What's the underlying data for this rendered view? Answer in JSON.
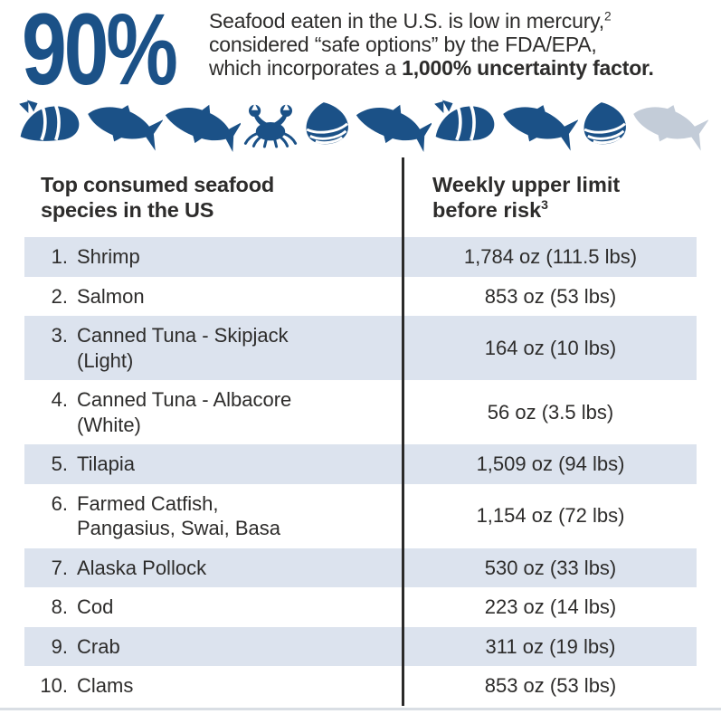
{
  "colors": {
    "navy": "#1b5187",
    "row_shade": "#dce3ee",
    "text": "#2d2c2b",
    "divider": "#2b2a29",
    "muted_fish": "#c3ccd8",
    "bottom_line": "#d9dee4"
  },
  "header": {
    "stat": "90%",
    "line1_normal": "Seafood eaten in the U.S. is low in mercury,",
    "line1_sup": "2",
    "line2": "considered “safe options” by the FDA/EPA,",
    "line3_normal": "which incorporates a ",
    "line3_bold": "1,000% uncertainty factor."
  },
  "icon_row": [
    "shrimp",
    "salmon",
    "tuna",
    "crab",
    "clam",
    "tuna",
    "shrimp",
    "salmon",
    "clam",
    "fish-muted"
  ],
  "table": {
    "col1_header_line1": "Top consumed seafood",
    "col1_header_line2": "species in the US",
    "col2_header_line1": "Weekly upper limit",
    "col2_header_line2": "before risk",
    "col2_header_sup": "3",
    "rows": [
      {
        "rank": "1.",
        "species": "Shrimp",
        "limit": "1,784 oz (111.5 lbs)",
        "shaded": true
      },
      {
        "rank": "2.",
        "species": "Salmon",
        "limit": "853 oz (53 lbs)",
        "shaded": false
      },
      {
        "rank": "3.",
        "species": "Canned Tuna - Skipjack\n(Light)",
        "limit": "164 oz (10 lbs)",
        "shaded": true
      },
      {
        "rank": "4.",
        "species": "Canned Tuna - Albacore\n(White)",
        "limit": "56 oz (3.5 lbs)",
        "shaded": false
      },
      {
        "rank": "5.",
        "species": "Tilapia",
        "limit": "1,509 oz (94 lbs)",
        "shaded": true
      },
      {
        "rank": "6.",
        "species": "Farmed Catfish,\nPangasius, Swai, Basa",
        "limit": "1,154 oz (72 lbs)",
        "shaded": false
      },
      {
        "rank": "7.",
        "species": "Alaska Pollock",
        "limit": "530 oz (33 lbs)",
        "shaded": true
      },
      {
        "rank": "8.",
        "species": "Cod",
        "limit": "223 oz (14 lbs)",
        "shaded": false
      },
      {
        "rank": "9.",
        "species": "Crab",
        "limit": "311 oz (19 lbs)",
        "shaded": true
      },
      {
        "rank": "10.",
        "species": "Clams",
        "limit": "853 oz (53 lbs)",
        "shaded": false
      }
    ]
  },
  "chart_data": {
    "type": "table",
    "title": "90% — Seafood eaten in the U.S. is low in mercury, considered “safe options” by the FDA/EPA, which incorporates a 1,000% uncertainty factor.",
    "columns": [
      "Rank",
      "Top consumed seafood species in the US",
      "Weekly upper limit before risk (oz)",
      "Weekly upper limit before risk (lbs)"
    ],
    "rows": [
      [
        1,
        "Shrimp",
        1784,
        111.5
      ],
      [
        2,
        "Salmon",
        853,
        53
      ],
      [
        3,
        "Canned Tuna - Skipjack (Light)",
        164,
        10
      ],
      [
        4,
        "Canned Tuna - Albacore (White)",
        56,
        3.5
      ],
      [
        5,
        "Tilapia",
        1509,
        94
      ],
      [
        6,
        "Farmed Catfish, Pangasius, Swai, Basa",
        1154,
        72
      ],
      [
        7,
        "Alaska Pollock",
        530,
        33
      ],
      [
        8,
        "Cod",
        223,
        14
      ],
      [
        9,
        "Crab",
        311,
        19
      ],
      [
        10,
        "Clams",
        853,
        53
      ]
    ],
    "footnote_markers": [
      "2",
      "3"
    ]
  }
}
